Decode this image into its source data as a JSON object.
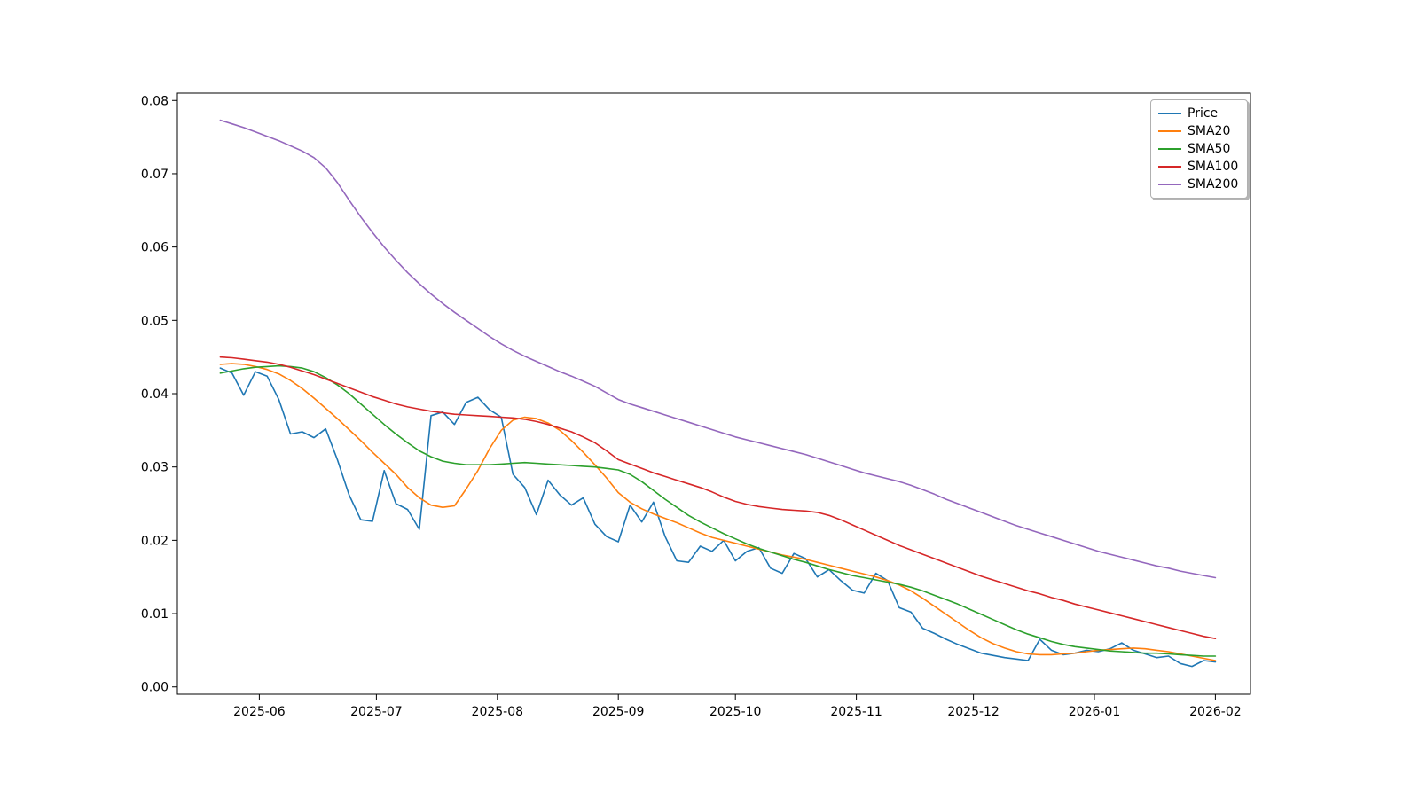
{
  "figure": {
    "background": "#ffffff",
    "frame_color": "#000000",
    "tick_color": "#000000"
  },
  "chart_data": {
    "type": "line",
    "title": "",
    "xlabel": "",
    "ylabel": "",
    "grid": false,
    "x_unit": "days since 2025-06-01",
    "xlim": [
      -21,
      254
    ],
    "ylim": [
      -0.001,
      0.081
    ],
    "x_ticks": [
      {
        "pos": 0,
        "label": "2025-06"
      },
      {
        "pos": 30,
        "label": "2025-07"
      },
      {
        "pos": 61,
        "label": "2025-08"
      },
      {
        "pos": 92,
        "label": "2025-09"
      },
      {
        "pos": 122,
        "label": "2025-10"
      },
      {
        "pos": 153,
        "label": "2025-11"
      },
      {
        "pos": 183,
        "label": "2025-12"
      },
      {
        "pos": 214,
        "label": "2026-01"
      },
      {
        "pos": 245,
        "label": "2026-02"
      }
    ],
    "y_ticks": [
      {
        "pos": 0.0,
        "label": "0.00"
      },
      {
        "pos": 0.01,
        "label": "0.01"
      },
      {
        "pos": 0.02,
        "label": "0.02"
      },
      {
        "pos": 0.03,
        "label": "0.03"
      },
      {
        "pos": 0.04,
        "label": "0.04"
      },
      {
        "pos": 0.05,
        "label": "0.05"
      },
      {
        "pos": 0.06,
        "label": "0.06"
      },
      {
        "pos": 0.07,
        "label": "0.07"
      },
      {
        "pos": 0.08,
        "label": "0.08"
      }
    ],
    "legend": {
      "position": "upper right",
      "entries": [
        "Price",
        "SMA20",
        "SMA50",
        "SMA100",
        "SMA200"
      ]
    },
    "x": [
      -10,
      -7,
      -4,
      -1,
      2,
      5,
      8,
      11,
      14,
      17,
      20,
      23,
      26,
      29,
      32,
      35,
      38,
      41,
      44,
      47,
      50,
      53,
      56,
      59,
      62,
      65,
      68,
      71,
      74,
      77,
      80,
      83,
      86,
      89,
      92,
      95,
      98,
      101,
      104,
      107,
      110,
      113,
      116,
      119,
      122,
      125,
      128,
      131,
      134,
      137,
      140,
      143,
      146,
      149,
      152,
      155,
      158,
      161,
      164,
      167,
      170,
      173,
      176,
      179,
      182,
      185,
      188,
      191,
      194,
      197,
      200,
      203,
      206,
      209,
      212,
      215,
      218,
      221,
      224,
      227,
      230,
      233,
      236,
      239,
      242,
      245
    ],
    "series": [
      {
        "name": "Price",
        "color": "#1f77b4",
        "values": [
          0.0435,
          0.0428,
          0.0398,
          0.043,
          0.0424,
          0.0392,
          0.0345,
          0.0348,
          0.034,
          0.0352,
          0.031,
          0.0262,
          0.0228,
          0.0226,
          0.0295,
          0.025,
          0.0242,
          0.0215,
          0.037,
          0.0375,
          0.0358,
          0.0388,
          0.0395,
          0.0378,
          0.0368,
          0.029,
          0.0272,
          0.0235,
          0.0282,
          0.0262,
          0.0248,
          0.0258,
          0.0222,
          0.0205,
          0.0198,
          0.0248,
          0.0225,
          0.0252,
          0.0205,
          0.0172,
          0.017,
          0.0192,
          0.0185,
          0.02,
          0.0172,
          0.0185,
          0.019,
          0.0162,
          0.0155,
          0.0182,
          0.0175,
          0.015,
          0.016,
          0.0145,
          0.0132,
          0.0128,
          0.0155,
          0.0145,
          0.0108,
          0.0102,
          0.008,
          0.0073,
          0.0065,
          0.0058,
          0.0052,
          0.0046,
          0.0043,
          0.004,
          0.0038,
          0.0036,
          0.0065,
          0.005,
          0.0044,
          0.0046,
          0.005,
          0.0048,
          0.0052,
          0.006,
          0.005,
          0.0045,
          0.004,
          0.0042,
          0.0032,
          0.0028,
          0.0036,
          0.0034
        ]
      },
      {
        "name": "SMA20",
        "color": "#ff7f0e",
        "values": [
          0.044,
          0.0441,
          0.044,
          0.0437,
          0.0433,
          0.0427,
          0.0418,
          0.0407,
          0.0394,
          0.038,
          0.0366,
          0.0351,
          0.0336,
          0.032,
          0.0305,
          0.029,
          0.0272,
          0.0258,
          0.0248,
          0.0245,
          0.0247,
          0.027,
          0.0295,
          0.0325,
          0.035,
          0.0364,
          0.0368,
          0.0366,
          0.036,
          0.035,
          0.0336,
          0.032,
          0.0303,
          0.0285,
          0.0265,
          0.0252,
          0.0243,
          0.0236,
          0.023,
          0.0224,
          0.0217,
          0.021,
          0.0204,
          0.02,
          0.0196,
          0.0192,
          0.0188,
          0.0184,
          0.018,
          0.0177,
          0.0174,
          0.017,
          0.0166,
          0.0162,
          0.0158,
          0.0154,
          0.015,
          0.0145,
          0.0139,
          0.0131,
          0.0121,
          0.011,
          0.0099,
          0.0088,
          0.0077,
          0.0067,
          0.0059,
          0.0053,
          0.0048,
          0.0045,
          0.0044,
          0.0044,
          0.0045,
          0.0046,
          0.0048,
          0.005,
          0.0051,
          0.0052,
          0.0053,
          0.0052,
          0.005,
          0.0048,
          0.0045,
          0.0042,
          0.0039,
          0.0036
        ]
      },
      {
        "name": "SMA50",
        "color": "#2ca02c",
        "values": [
          0.0428,
          0.0431,
          0.0434,
          0.0436,
          0.0437,
          0.0438,
          0.0437,
          0.0435,
          0.043,
          0.0422,
          0.0412,
          0.04,
          0.0386,
          0.0372,
          0.0358,
          0.0345,
          0.0333,
          0.0322,
          0.0314,
          0.0308,
          0.0305,
          0.0303,
          0.0303,
          0.0303,
          0.0304,
          0.0305,
          0.0306,
          0.0305,
          0.0304,
          0.0303,
          0.0302,
          0.0301,
          0.03,
          0.0298,
          0.0296,
          0.029,
          0.028,
          0.0268,
          0.0256,
          0.0245,
          0.0234,
          0.0225,
          0.0217,
          0.0209,
          0.0202,
          0.0195,
          0.0189,
          0.0184,
          0.0179,
          0.0174,
          0.017,
          0.0165,
          0.016,
          0.0156,
          0.0152,
          0.0149,
          0.0146,
          0.0143,
          0.014,
          0.0136,
          0.0131,
          0.0125,
          0.0119,
          0.0113,
          0.0106,
          0.0099,
          0.0092,
          0.0085,
          0.0078,
          0.0072,
          0.0067,
          0.0062,
          0.0058,
          0.0055,
          0.0053,
          0.0051,
          0.0049,
          0.0048,
          0.0047,
          0.0046,
          0.0046,
          0.0045,
          0.0044,
          0.0043,
          0.0042,
          0.0042
        ]
      },
      {
        "name": "SMA100",
        "color": "#d62728",
        "values": [
          0.045,
          0.0449,
          0.0447,
          0.0445,
          0.0443,
          0.044,
          0.0436,
          0.0431,
          0.0426,
          0.042,
          0.0414,
          0.0408,
          0.0402,
          0.0396,
          0.0391,
          0.0386,
          0.0382,
          0.0379,
          0.0376,
          0.0374,
          0.0372,
          0.0371,
          0.037,
          0.0369,
          0.0368,
          0.0367,
          0.0365,
          0.0362,
          0.0358,
          0.0353,
          0.0348,
          0.0341,
          0.0333,
          0.0322,
          0.031,
          0.0304,
          0.0298,
          0.0292,
          0.0287,
          0.0282,
          0.0277,
          0.0272,
          0.0266,
          0.0259,
          0.0253,
          0.0249,
          0.0246,
          0.0244,
          0.0242,
          0.0241,
          0.024,
          0.0238,
          0.0234,
          0.0228,
          0.0221,
          0.0214,
          0.0207,
          0.02,
          0.0193,
          0.0187,
          0.0181,
          0.0175,
          0.0169,
          0.0163,
          0.0157,
          0.0151,
          0.0146,
          0.0141,
          0.0136,
          0.0131,
          0.0127,
          0.0122,
          0.0118,
          0.0113,
          0.0109,
          0.0105,
          0.0101,
          0.0097,
          0.0093,
          0.0089,
          0.0085,
          0.0081,
          0.0077,
          0.0073,
          0.0069,
          0.0066
        ]
      },
      {
        "name": "SMA200",
        "color": "#9467bd",
        "values": [
          0.0773,
          0.0768,
          0.0763,
          0.0757,
          0.0751,
          0.0745,
          0.0738,
          0.0731,
          0.0722,
          0.0708,
          0.0688,
          0.0664,
          0.0641,
          0.062,
          0.06,
          0.0582,
          0.0565,
          0.055,
          0.0536,
          0.0523,
          0.0511,
          0.05,
          0.0489,
          0.0478,
          0.0468,
          0.0459,
          0.0451,
          0.0444,
          0.0437,
          0.043,
          0.0424,
          0.0417,
          0.041,
          0.0401,
          0.0392,
          0.0386,
          0.0381,
          0.0376,
          0.0371,
          0.0366,
          0.0361,
          0.0356,
          0.0351,
          0.0346,
          0.0341,
          0.0337,
          0.0333,
          0.0329,
          0.0325,
          0.0321,
          0.0317,
          0.0312,
          0.0307,
          0.0302,
          0.0297,
          0.0292,
          0.0288,
          0.0284,
          0.028,
          0.0275,
          0.0269,
          0.0263,
          0.0256,
          0.025,
          0.0244,
          0.0238,
          0.0232,
          0.0226,
          0.022,
          0.0215,
          0.021,
          0.0205,
          0.02,
          0.0195,
          0.019,
          0.0185,
          0.0181,
          0.0177,
          0.0173,
          0.0169,
          0.0165,
          0.0162,
          0.0158,
          0.0155,
          0.0152,
          0.0149
        ]
      }
    ]
  }
}
